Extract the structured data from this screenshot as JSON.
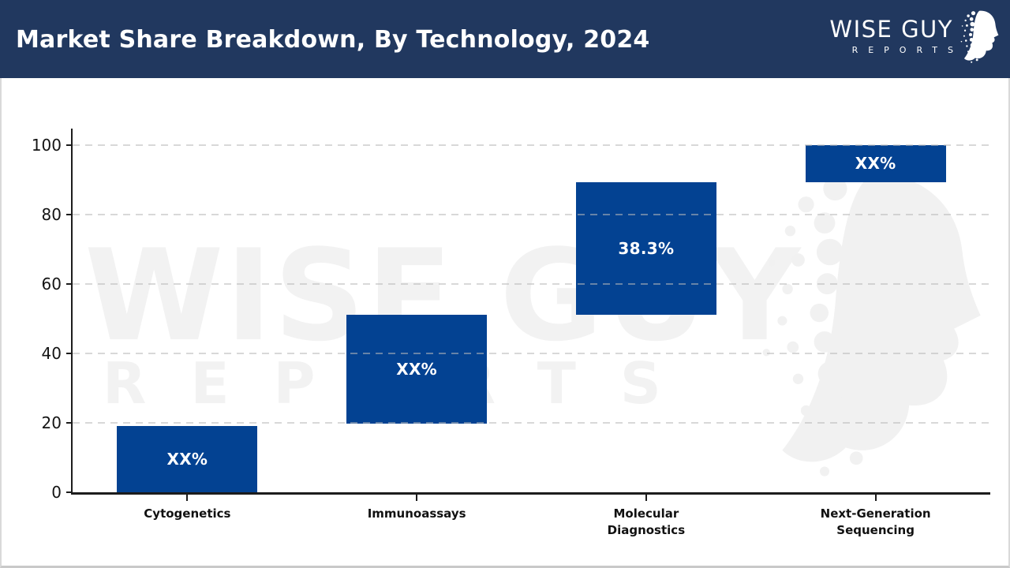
{
  "header": {
    "brand": {
      "line1": "WISE GUY",
      "line2": "REPORTS"
    }
  },
  "watermark": {
    "line1": "WISE GUY",
    "line2": "REPORTS"
  },
  "chart_data": {
    "type": "bar",
    "variant": "waterfall",
    "title": "Market Share Breakdown, By Technology, 2024",
    "categories": [
      "Cytogenetics",
      "Immunoassays",
      "Molecular Diagnostics",
      "Next-Generation Sequencing"
    ],
    "category_display": [
      "Cytogenetics",
      "Immunoassays",
      "Molecular\nDiagnostics",
      "Next-Generation\nSequencing"
    ],
    "segments": [
      {
        "category": "Cytogenetics",
        "start": 0,
        "end": 19.1,
        "label": "XX%"
      },
      {
        "category": "Immunoassays",
        "start": 19.8,
        "end": 51.1,
        "label": "XX%"
      },
      {
        "category": "Molecular Diagnostics",
        "start": 51.1,
        "end": 89.4,
        "label": "38.3%"
      },
      {
        "category": "Next-Generation Sequencing",
        "start": 89.4,
        "end": 100,
        "label": "XX%"
      }
    ],
    "xlabel": "",
    "ylabel": "",
    "ylim": [
      0,
      100
    ],
    "yticks": [
      0,
      20,
      40,
      60,
      80,
      100
    ],
    "grid": {
      "axis": "y",
      "style": "dashed",
      "on_top": true
    },
    "legend": "none",
    "bar_color": "#034292",
    "bar_label_color": "#ffffff"
  },
  "colors": {
    "header_bg": "#21385f",
    "header_text": "#ffffff",
    "bar": "#034292",
    "watermark": "#f2f2f2",
    "axis": "#1c1c1c",
    "grid": "#e2e2e2"
  }
}
